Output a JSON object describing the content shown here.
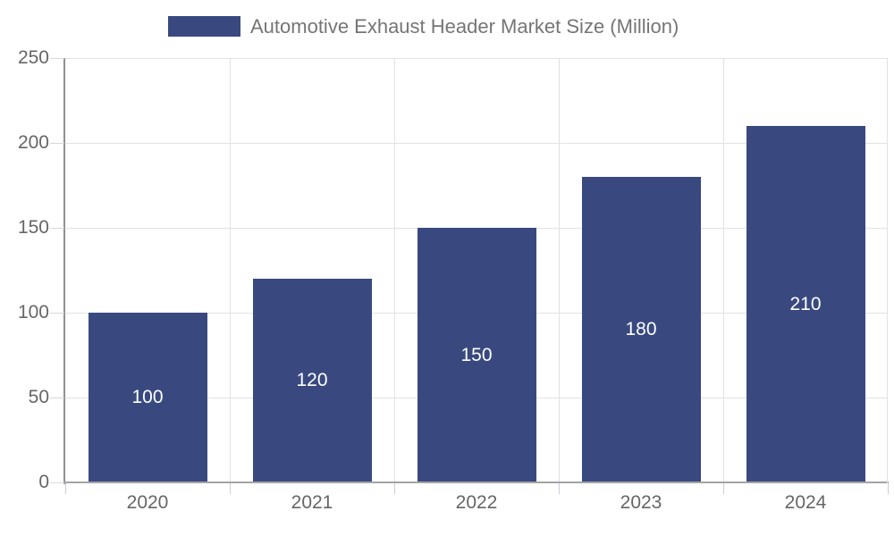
{
  "chart_data": {
    "type": "bar",
    "title": "Automotive Exhaust Header Market Size (Million)",
    "categories": [
      "2020",
      "2021",
      "2022",
      "2023",
      "2024"
    ],
    "values": [
      100,
      120,
      150,
      180,
      210
    ],
    "series": [
      {
        "name": "Automotive Exhaust Header Market Size (Million)",
        "values": [
          100,
          120,
          150,
          180,
          210
        ]
      }
    ],
    "value_labels": [
      "100",
      "120",
      "150",
      "180",
      "210"
    ],
    "xlabel": "",
    "ylabel": "",
    "y_ticks": [
      0,
      50,
      100,
      150,
      200,
      250
    ],
    "ylim": [
      0,
      250
    ],
    "grid": "on",
    "legend_position": "top",
    "bar_color": "#394980",
    "value_label_color": "#ffffff"
  }
}
